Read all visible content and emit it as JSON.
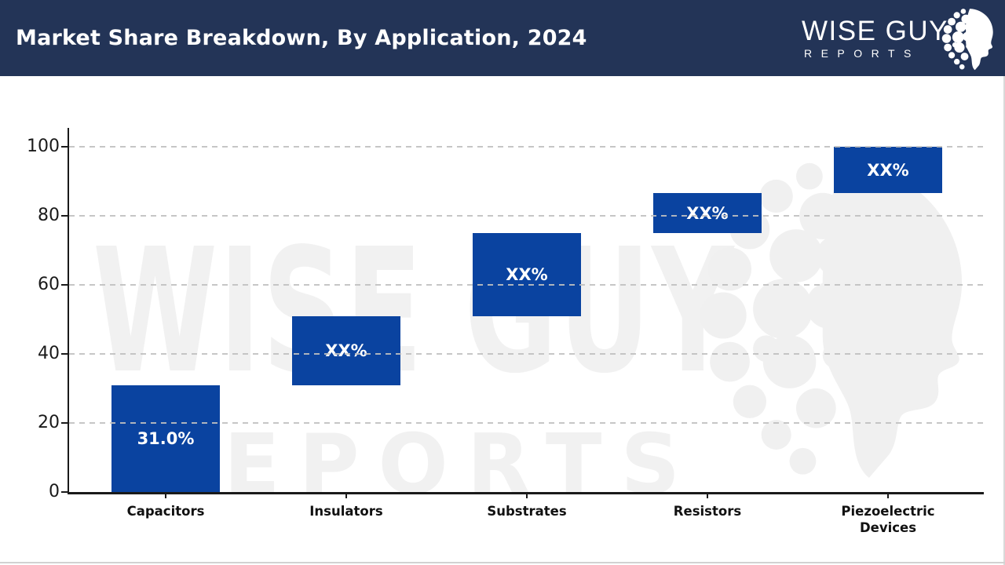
{
  "header": {
    "title": "Market Share Breakdown, By Application, 2024",
    "bg_color": "#233457",
    "logo": {
      "line1": "WISE GUY",
      "line2": "REPORTS"
    }
  },
  "watermark": {
    "line1": "WISE GUY",
    "line2": "REPORTS"
  },
  "chart_data": {
    "type": "bar",
    "subtype": "waterfall",
    "title": "Market Share Breakdown, By Application, 2024",
    "categories": [
      "Capacitors",
      "Insulators",
      "Substrates",
      "Resistors",
      "Piezoelectric\nDevices"
    ],
    "segments": [
      {
        "category": "Capacitors",
        "start": 0,
        "end": 31,
        "label": "31.0%"
      },
      {
        "category": "Insulators",
        "start": 31,
        "end": 51,
        "label": "XX%"
      },
      {
        "category": "Substrates",
        "start": 51,
        "end": 75,
        "label": "XX%"
      },
      {
        "category": "Resistors",
        "start": 75,
        "end": 86.5,
        "label": "XX%"
      },
      {
        "category": "Piezoelectric\nDevices",
        "start": 86.5,
        "end": 100,
        "label": "XX%"
      }
    ],
    "y_ticks": [
      0,
      20,
      40,
      60,
      80,
      100
    ],
    "ylim": [
      0,
      100
    ],
    "xlabel": "",
    "ylabel": "",
    "grid": "horizontal-dashed",
    "legend": "none",
    "bar_color": "#0a43a0",
    "bar_label_color": "#ffffff"
  }
}
